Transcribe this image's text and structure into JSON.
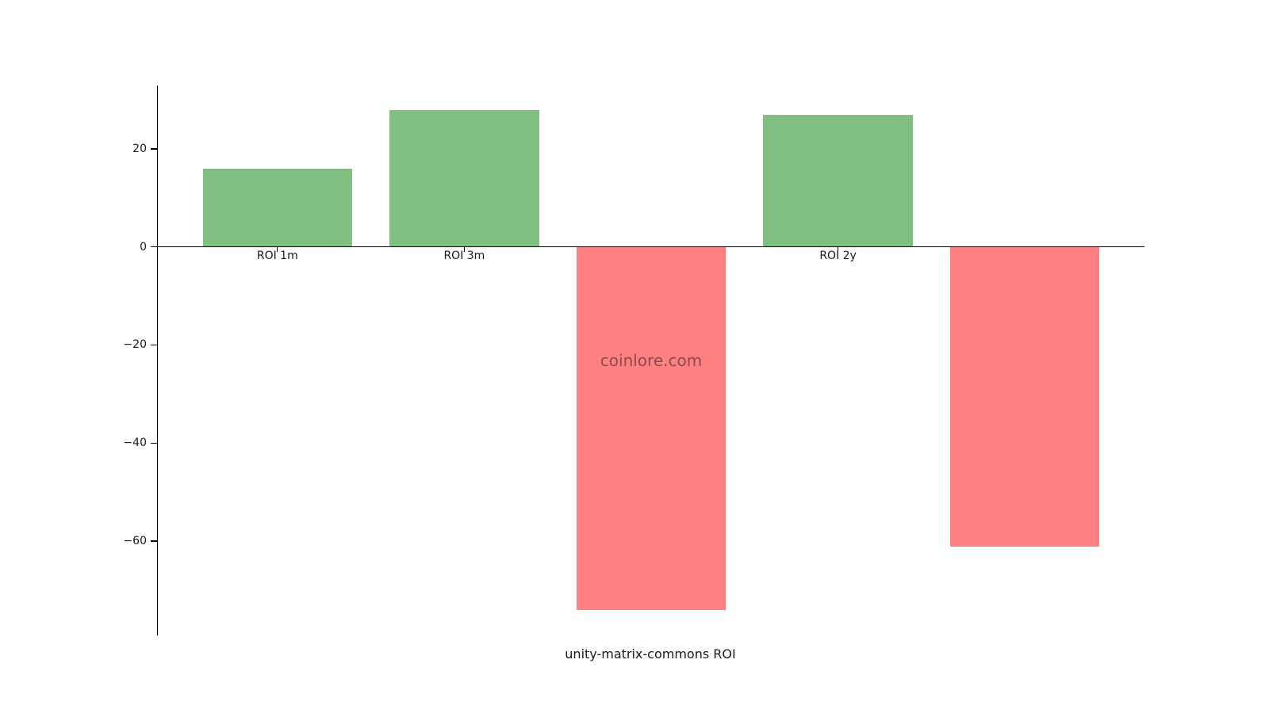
{
  "chart_data": {
    "type": "bar",
    "title": "unity-matrix-commons ROI",
    "watermark": "coinlore.com",
    "categories": [
      "ROI 1m",
      "ROI 3m",
      "",
      "ROI 2y",
      ""
    ],
    "values": [
      15.9,
      27.9,
      -74.0,
      27.0,
      -61.1
    ],
    "bar_colors": [
      "#7fbf7f",
      "#7fbf7f",
      "#ff8080",
      "#7fbf7f",
      "#ff8080"
    ],
    "positive_color": "#7fbf7f",
    "negative_color": "#ff8080",
    "yticks": [
      20,
      0,
      -20,
      -40,
      -60
    ],
    "ylim": [
      -79.2,
      32.9
    ],
    "xlabel": "",
    "ylabel": "",
    "grid": false,
    "legend_position": "none",
    "axis_color": "#000000",
    "background_color": "#ffffff",
    "watermark_color": "#8a4c50"
  }
}
